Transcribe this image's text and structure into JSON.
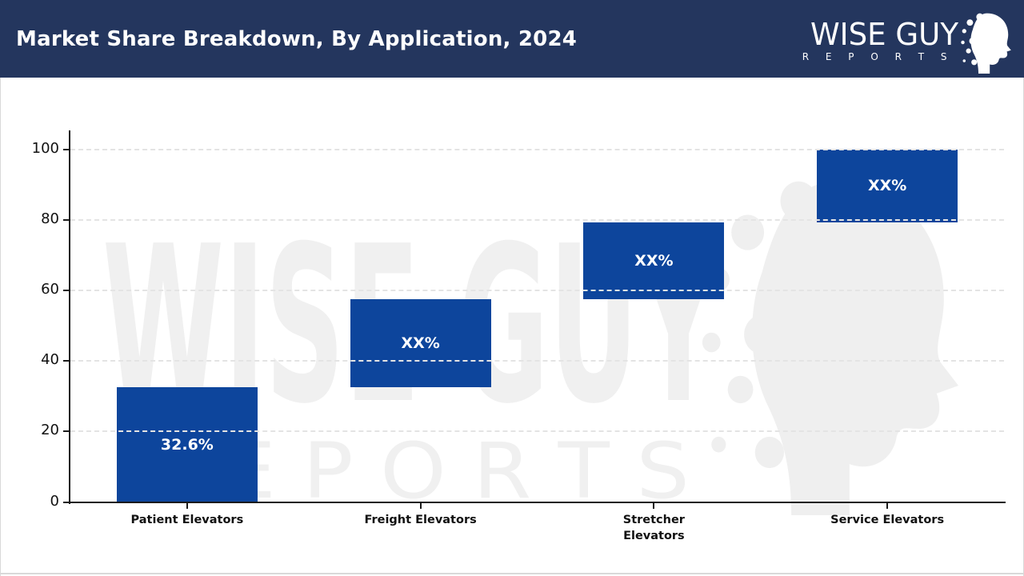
{
  "header": {
    "title": "Market Share Breakdown, By Application, 2024",
    "bg_color": "#24365e",
    "logo": {
      "line1": "WISE GUY",
      "line2": "R E P O R T S"
    }
  },
  "watermark": {
    "line1": "WISE GUY",
    "line2": "R E P O R T S",
    "color": "#f0f0f0"
  },
  "chart_data": {
    "type": "bar",
    "subtype": "waterfall",
    "title": "Market Share Breakdown, By Application, 2024",
    "categories": [
      "Patient Elevators",
      "Freight Elevators",
      "Stretcher\nElevators",
      "Service Elevators"
    ],
    "segments": [
      {
        "category": "Patient Elevators",
        "start": 0,
        "end": 32.6,
        "label": "32.6%"
      },
      {
        "category": "Freight Elevators",
        "start": 32.6,
        "end": 57.4,
        "label": "XX%"
      },
      {
        "category": "Stretcher Elevators",
        "start": 57.4,
        "end": 79.3,
        "label": "XX%"
      },
      {
        "category": "Service Elevators",
        "start": 79.3,
        "end": 100,
        "label": "XX%"
      }
    ],
    "yticks": [
      0,
      20,
      40,
      60,
      80,
      100
    ],
    "ylim": [
      0,
      104.5
    ],
    "bar_color": "#0d459c",
    "bar_label_color": "#ffffff",
    "grid": "horizontal-dashed",
    "gridline_color": "#e4e4e4",
    "axis_color": "#1a1a1a",
    "legend": "none",
    "xlabel": "",
    "ylabel": ""
  }
}
